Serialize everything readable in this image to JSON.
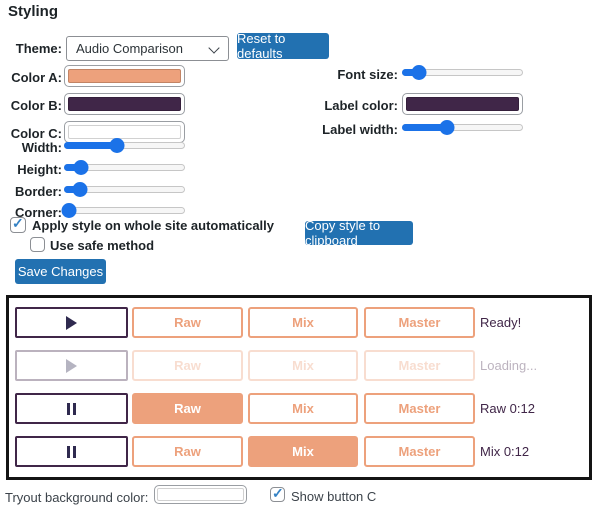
{
  "title": "Styling",
  "theme": {
    "label": "Theme:",
    "selected": "Audio Comparison",
    "reset_label": "Reset to defaults"
  },
  "style_controls": {
    "color_a": {
      "label": "Color A:",
      "value": "#eda17c"
    },
    "color_b": {
      "label": "Color B:",
      "value": "#402648"
    },
    "color_c": {
      "label": "Color C:",
      "value": "#ffffff"
    },
    "width": {
      "label": "Width:",
      "percent": 44
    },
    "height": {
      "label": "Height:",
      "percent": 14
    },
    "border": {
      "label": "Border:",
      "percent": 13
    },
    "corner": {
      "label": "Corner:",
      "percent": 4
    },
    "font_size": {
      "label": "Font size:",
      "percent": 14
    },
    "label_color": {
      "label": "Label color:",
      "value": "#402648"
    },
    "label_width": {
      "label": "Label width:",
      "percent": 37
    }
  },
  "options": {
    "apply_whole_site": {
      "label": "Apply style on whole site automatically",
      "checked": true
    },
    "use_safe_method": {
      "label": "Use safe method",
      "checked": false
    }
  },
  "actions": {
    "save": "Save Changes",
    "copy": "Copy style to clipboard"
  },
  "preview": {
    "rows": [
      {
        "transport": "play",
        "disabled": false,
        "buttons": [
          {
            "label": "Raw",
            "active": false
          },
          {
            "label": "Mix",
            "active": false
          },
          {
            "label": "Master",
            "active": false
          }
        ],
        "status": "Ready!"
      },
      {
        "transport": "play",
        "disabled": true,
        "buttons": [
          {
            "label": "Raw",
            "active": false
          },
          {
            "label": "Mix",
            "active": false
          },
          {
            "label": "Master",
            "active": false
          }
        ],
        "status": "Loading..."
      },
      {
        "transport": "pause",
        "disabled": false,
        "buttons": [
          {
            "label": "Raw",
            "active": true
          },
          {
            "label": "Mix",
            "active": false
          },
          {
            "label": "Master",
            "active": false
          }
        ],
        "status": "Raw 0:12"
      },
      {
        "transport": "pause",
        "disabled": false,
        "buttons": [
          {
            "label": "Raw",
            "active": false
          },
          {
            "label": "Mix",
            "active": true
          },
          {
            "label": "Master",
            "active": false
          }
        ],
        "status": "Mix 0:12"
      }
    ]
  },
  "footer": {
    "tryout_label": "Tryout background color:",
    "tryout_value": "#ffffff",
    "show_button_c": {
      "label": "Show button C",
      "checked": true
    }
  },
  "colors": {
    "wp_blue": "#2271b1",
    "slider_blue": "#1b72e8",
    "accent_a": "#eda17c",
    "accent_b": "#402648"
  }
}
